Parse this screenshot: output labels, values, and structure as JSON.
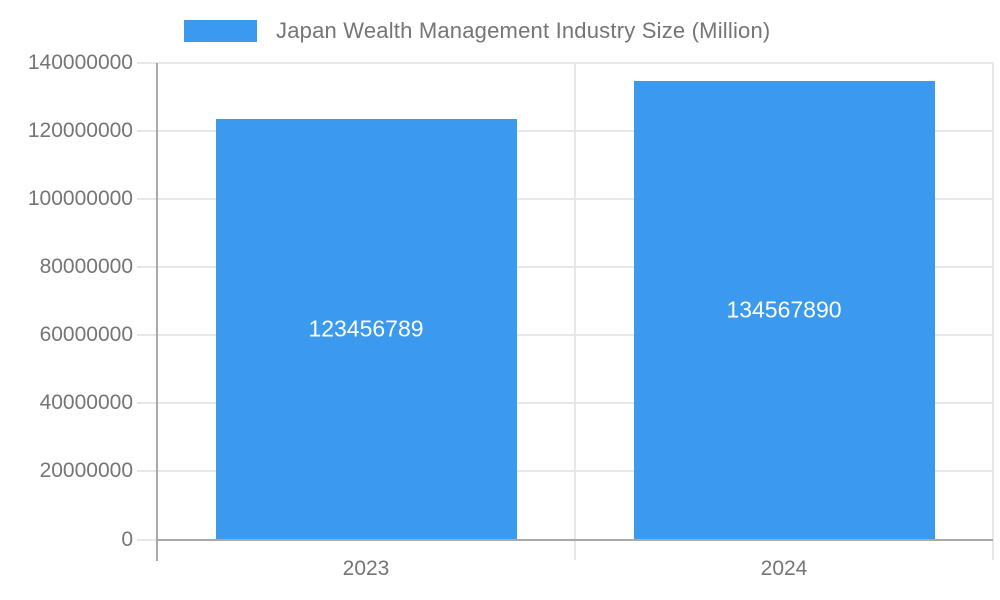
{
  "legend": {
    "label": "Japan Wealth Management Industry Size (Million)"
  },
  "chart_data": {
    "type": "bar",
    "title": "Japan Wealth Management Industry Size (Million)",
    "categories": [
      "2023",
      "2024"
    ],
    "series": [
      {
        "name": "Japan Wealth Management Industry Size (Million)",
        "values": [
          123456789,
          134567890
        ]
      }
    ],
    "value_labels": [
      "123456789",
      "134567890"
    ],
    "xlabel": "",
    "ylabel": "",
    "ylim": [
      0,
      140000000
    ],
    "yticks": [
      0,
      20000000,
      40000000,
      60000000,
      80000000,
      100000000,
      120000000,
      140000000
    ],
    "ytick_labels": [
      "0",
      "20000000",
      "40000000",
      "60000000",
      "80000000",
      "100000000",
      "120000000",
      "140000000"
    ],
    "grid": true,
    "legend_position": "top"
  },
  "colors": {
    "bar": "#3b99ee",
    "grid": "#e7e7e7",
    "axis": "#a9a9a9",
    "tick_label": "#757575",
    "legend_text": "#757575",
    "value_label": "#ffffff",
    "background": "#ffffff"
  }
}
